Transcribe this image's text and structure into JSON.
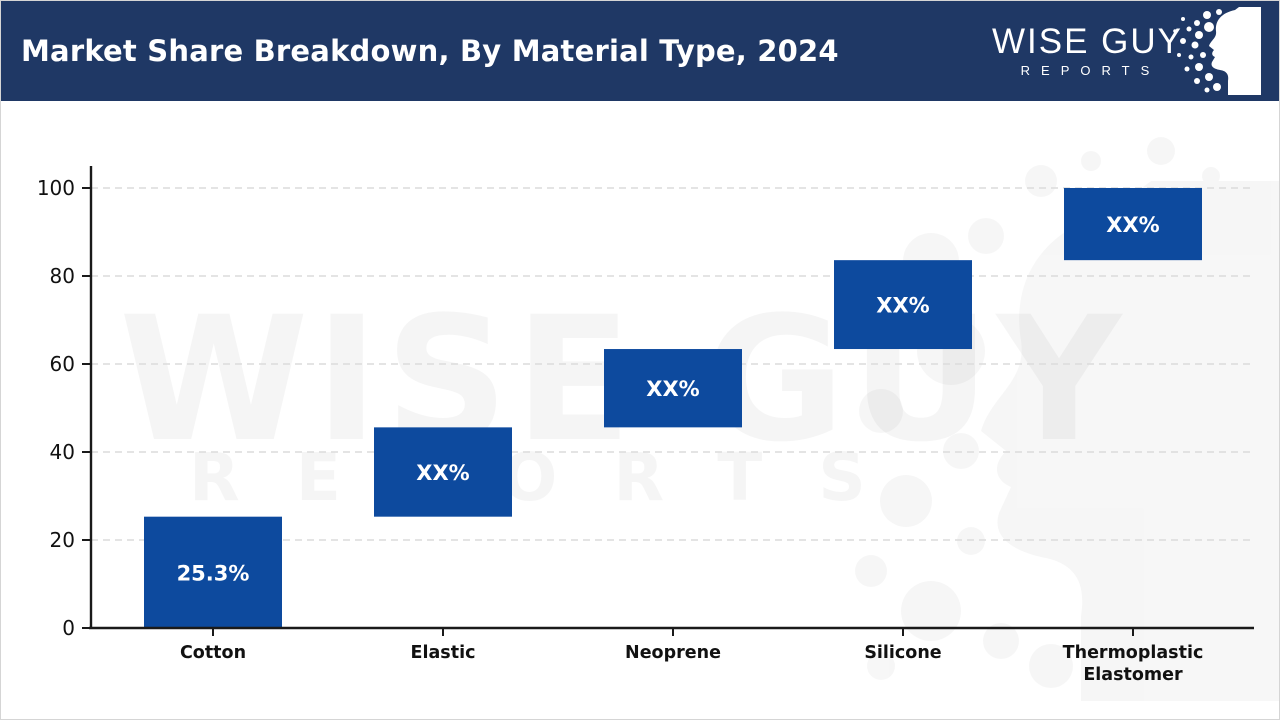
{
  "header": {
    "title": "Market Share Breakdown, By Material Type, 2024",
    "logo": {
      "line1": "WISE GUY",
      "line2": "REPORTS"
    }
  },
  "watermark": {
    "line1": "WISE GUY",
    "line2": "REPORTS"
  },
  "colors": {
    "header_bg": "#1f3865",
    "bar": "#0d4a9e",
    "bar_label": "#ffffff",
    "axis": "#1a1a1a",
    "grid": "#dcdcdc",
    "tick_text": "#111111"
  },
  "chart_data": {
    "type": "bar",
    "subtype": "waterfall-floating-bars",
    "title": "Market Share Breakdown, By Material Type, 2024",
    "categories": [
      "Cotton",
      "Elastic",
      "Neoprene",
      "Silicone",
      "Thermoplastic Elastomer"
    ],
    "tick_labels": [
      [
        "Cotton"
      ],
      [
        "Elastic"
      ],
      [
        "Neoprene"
      ],
      [
        "Silicone"
      ],
      [
        "Thermoplastic",
        "Elastomer"
      ]
    ],
    "segments": [
      {
        "category": "Cotton",
        "start": 0,
        "end": 25.3,
        "label": "25.3%"
      },
      {
        "category": "Elastic",
        "start": 25.3,
        "end": 45.6,
        "label": "XX%"
      },
      {
        "category": "Neoprene",
        "start": 45.6,
        "end": 63.4,
        "label": "XX%"
      },
      {
        "category": "Silicone",
        "start": 63.4,
        "end": 83.6,
        "label": "XX%"
      },
      {
        "category": "Thermoplastic Elastomer",
        "start": 83.6,
        "end": 100,
        "label": "XX%"
      }
    ],
    "yticks": [
      0,
      20,
      40,
      60,
      80,
      100
    ],
    "ylim": [
      0,
      100
    ],
    "xlabel": "",
    "ylabel": "",
    "grid": "horizontal-dashed",
    "legend": "none"
  }
}
